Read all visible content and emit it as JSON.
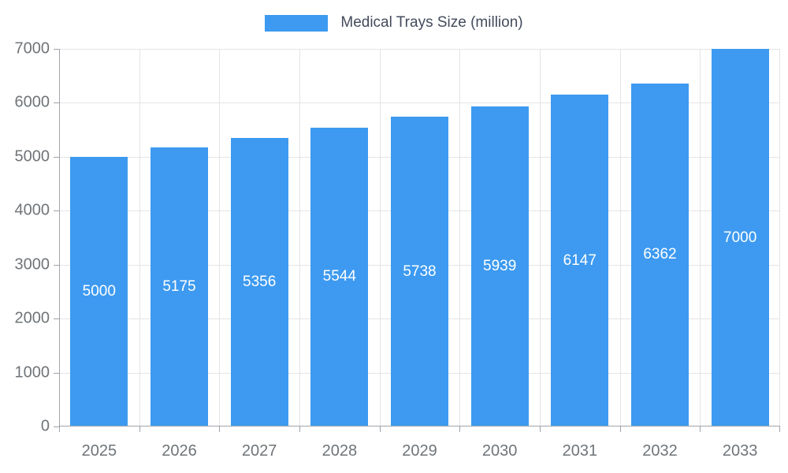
{
  "legend": {
    "label": "Medical Trays Size (million)"
  },
  "colors": {
    "bar": "#3d9af0",
    "bar_label_text": "#ffffff",
    "axis_text": "#6f7478",
    "legend_text": "#434b5c",
    "grid": "#e4e4e4",
    "axis_line": "#9fa4a9",
    "background": "#ffffff"
  },
  "chart_data": {
    "type": "bar",
    "title": "Medical Trays Size (million)",
    "categories": [
      "2025",
      "2026",
      "2027",
      "2028",
      "2029",
      "2030",
      "2031",
      "2032",
      "2033"
    ],
    "values": [
      5000,
      5175,
      5356,
      5544,
      5738,
      5939,
      6147,
      6362,
      7000
    ],
    "xlabel": "",
    "ylabel": "",
    "ylim": [
      0,
      7000
    ],
    "yticks": [
      0,
      1000,
      2000,
      3000,
      4000,
      5000,
      6000,
      7000
    ],
    "grid": true,
    "legend_position": "top",
    "bar_labels": "inside-center"
  }
}
